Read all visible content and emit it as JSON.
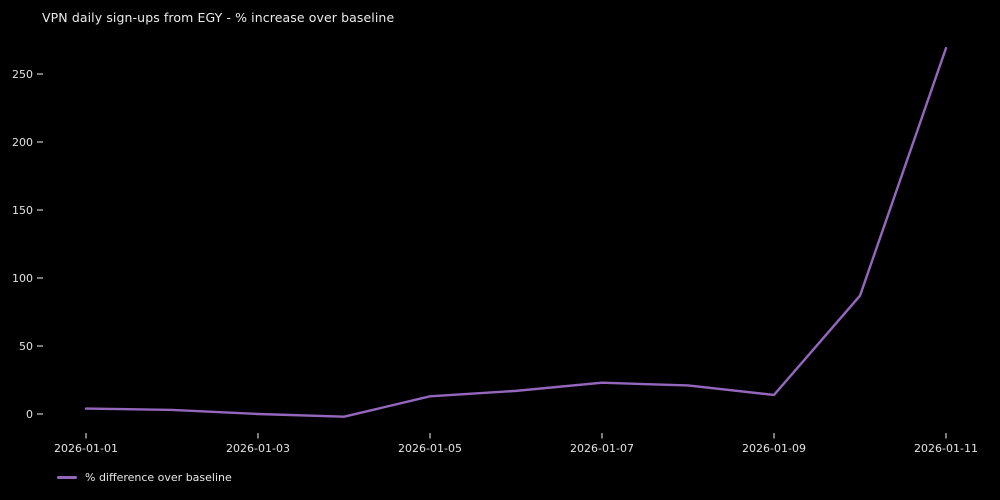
{
  "chart_data": {
    "type": "line",
    "title": "VPN daily sign-ups from EGY - % increase over baseline",
    "xlabel": "",
    "ylabel": "",
    "x": [
      "2026-01-01",
      "2026-01-02",
      "2026-01-03",
      "2026-01-04",
      "2026-01-05",
      "2026-01-06",
      "2026-01-07",
      "2026-01-08",
      "2026-01-09",
      "2026-01-10",
      "2026-01-11"
    ],
    "series": [
      {
        "name": "% difference over baseline",
        "values": [
          4,
          3,
          0,
          -2,
          13,
          17,
          23,
          21,
          14,
          87,
          269
        ],
        "color": "#9467bd"
      }
    ],
    "yticks": [
      0,
      50,
      100,
      150,
      200,
      250
    ],
    "xtick_labels": [
      "2026-01-01",
      "2026-01-03",
      "2026-01-05",
      "2026-01-07",
      "2026-01-09",
      "2026-01-11"
    ],
    "ylim": [
      -15,
      280
    ],
    "grid": false,
    "legend_position": "lower-left",
    "background_color": "#000000",
    "text_color": "#e8e8e8"
  }
}
